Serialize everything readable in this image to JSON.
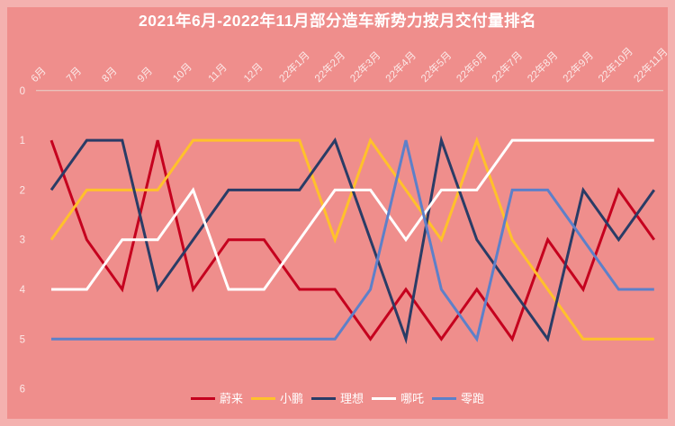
{
  "title": "2021年6月-2022年11月部分造车新势力按月交付量排名",
  "colors": {
    "background_outer": "#f4b1af",
    "background_inner": "#ef8e8c",
    "title_text": "#ffffff",
    "axis_label": "#fbe9e8",
    "gridline": "#e6dbd4"
  },
  "chart_data": {
    "type": "line",
    "title": "2021年6月-2022年11月部分造车新势力按月交付量排名",
    "categories": [
      "6月",
      "7月",
      "8月",
      "9月",
      "10月",
      "11月",
      "12月",
      "22年1月",
      "22年2月",
      "22年3月",
      "22年4月",
      "22年5月",
      "22年6月",
      "22年7月",
      "22年8月",
      "22年9月",
      "22年10月",
      "22年11月"
    ],
    "series": [
      {
        "name": "蔚来",
        "color": "#c5001e",
        "values": [
          1,
          3,
          4,
          1,
          4,
          3,
          3,
          4,
          4,
          5,
          4,
          5,
          4,
          5,
          3,
          4,
          2,
          3
        ]
      },
      {
        "name": "小鹏",
        "color": "#ffc12b",
        "values": [
          3,
          2,
          2,
          2,
          1,
          1,
          1,
          1,
          3,
          1,
          2,
          3,
          1,
          3,
          4,
          5,
          5,
          5
        ]
      },
      {
        "name": "理想",
        "color": "#2a3c66",
        "values": [
          2,
          1,
          1,
          4,
          3,
          2,
          2,
          2,
          1,
          3,
          5,
          1,
          3,
          4,
          5,
          2,
          3,
          2
        ]
      },
      {
        "name": "哪吒",
        "color": "#ffffff",
        "values": [
          4,
          4,
          3,
          3,
          2,
          4,
          4,
          3,
          2,
          2,
          3,
          2,
          2,
          1,
          1,
          1,
          1,
          1
        ]
      },
      {
        "name": "零跑",
        "color": "#5d80c9",
        "values": [
          5,
          5,
          5,
          5,
          5,
          5,
          5,
          5,
          5,
          4,
          1,
          4,
          5,
          2,
          2,
          3,
          4,
          4
        ]
      }
    ],
    "ylabel": "",
    "xlabel": "",
    "y_ticks": [
      0,
      1,
      2,
      3,
      4,
      5,
      6
    ],
    "y_axis_inverted": true,
    "ylim": [
      0,
      6
    ],
    "grid": "horizontal line at y=0 only",
    "legend_position": "bottom-center"
  }
}
